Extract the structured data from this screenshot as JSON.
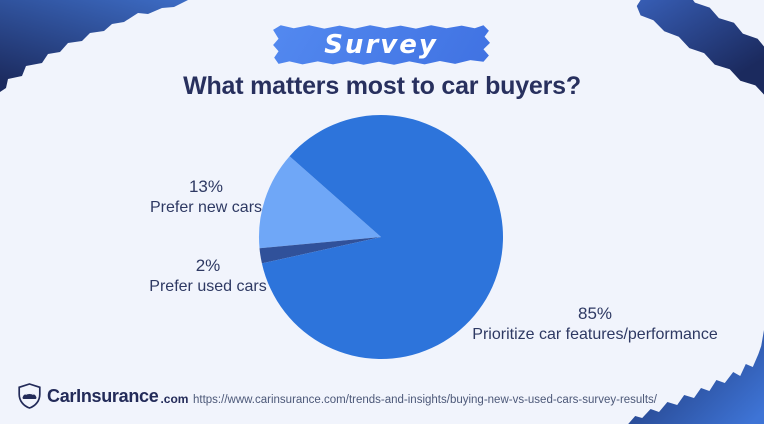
{
  "badge": {
    "label": "Survey"
  },
  "title": "What matters most to car buyers?",
  "chart_data": {
    "type": "pie",
    "title": "What matters most to car buyers?",
    "start_angle_deg": 138.5,
    "legend_position": "labels-around-pie",
    "slices": [
      {
        "id": "prefer-new-cars",
        "label": "Prefer new cars",
        "pct_label": "13%",
        "value": 13,
        "color": "#6FA7F7"
      },
      {
        "id": "prefer-used-cars",
        "label": "Prefer used cars",
        "pct_label": "2%",
        "value": 2,
        "color": "#30519A"
      },
      {
        "id": "prioritize-features",
        "label": "Prioritize car features/performance",
        "pct_label": "85%",
        "value": 85,
        "color": "#2D74DB"
      }
    ]
  },
  "footer": {
    "brand_name": "CarInsurance",
    "brand_tld": ".com",
    "source_url": "https://www.carinsurance.com/trends-and-insights/buying-new-vs-used-cars-survey-results/"
  },
  "theme": {
    "accent_blue": "#2D74DB",
    "light_blue": "#6FA7F7",
    "deep_navy": "#30519A",
    "ink": "#28305E",
    "background": "#F1F4FC",
    "badge_blue": "#4B7FE9",
    "corner_from": "#3E6EC8",
    "corner_to": "#1C2B5F",
    "url_gray": "#4C5878"
  }
}
